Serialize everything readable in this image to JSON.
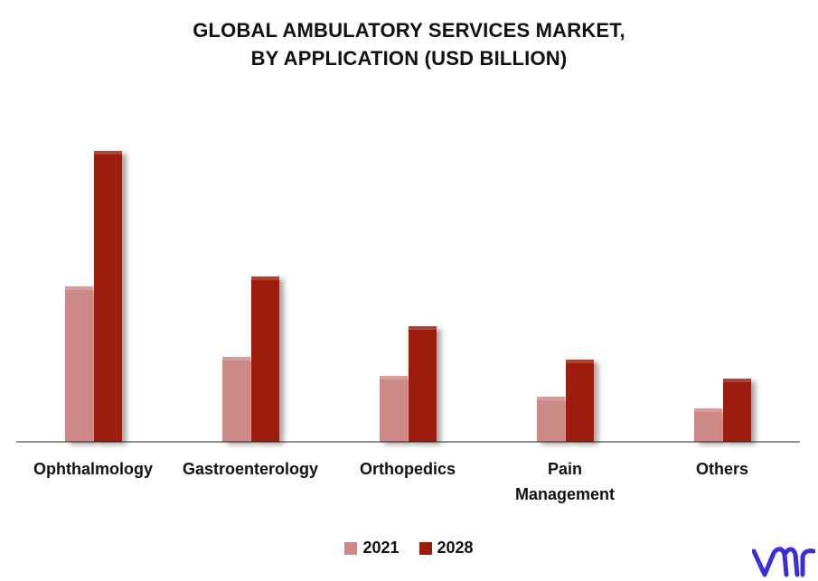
{
  "chart_data": {
    "type": "bar",
    "title": "GLOBAL AMBULATORY SERVICES MARKET,",
    "subtitle": "BY APPLICATION (USD BILLION)",
    "categories": [
      [
        "Ophthalmology"
      ],
      [
        "Gastroenterology"
      ],
      [
        "Orthopedics"
      ],
      [
        "Pain",
        "Management"
      ],
      [
        "Others"
      ]
    ],
    "series": [
      {
        "name": "2021",
        "color": "#cd8985",
        "values": [
          172,
          94,
          73,
          50,
          37
        ]
      },
      {
        "name": "2028",
        "color": "#9c1c09",
        "values": [
          322,
          183,
          128,
          91,
          70
        ]
      }
    ],
    "ylim": [
      0,
      340
    ],
    "grid": false,
    "legend_position": "bottom"
  },
  "logo": {
    "name": "vmr-logo-icon",
    "color": "#3a2fd6"
  }
}
